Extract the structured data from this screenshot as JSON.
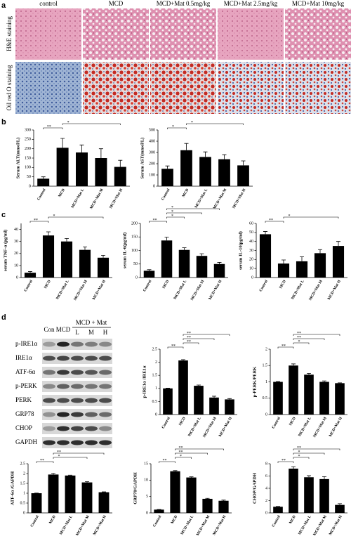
{
  "panel_a": {
    "label": "a",
    "columns": [
      "control",
      "MCD",
      "MCD+Mat 0.5mg/kg",
      "MCD+Mat 2.5mg/kg",
      "MCD+Mat 10mg/kg"
    ],
    "rows": [
      "H&E staining",
      "Oil red O staining"
    ]
  },
  "panel_b": {
    "label": "b"
  },
  "panel_c": {
    "label": "c"
  },
  "panel_d": {
    "label": "d",
    "lanes": [
      "Con",
      "MCD",
      "L",
      "M",
      "H"
    ],
    "group": "MCD + Mat",
    "rows": [
      "p-IRE1α",
      "IRE1α",
      "ATF-6α",
      "p-PERK",
      "PERK",
      "GRP78",
      "CHOP",
      "GAPDH"
    ]
  },
  "chart_data": [
    {
      "type": "bar",
      "y_label": "Serum ALT(mmol/L)",
      "categories": [
        "Control",
        "MCD",
        "MCD+Mat L",
        "MCD+Mat M",
        "MCD+Mat H"
      ],
      "values": [
        40,
        205,
        180,
        150,
        103
      ],
      "errors": [
        10,
        50,
        40,
        50,
        35
      ],
      "color": "#000000",
      "ylim": [
        0,
        300
      ],
      "yticks": [
        0,
        50,
        100,
        150,
        200,
        250,
        300
      ],
      "annotations": [
        {
          "text": "**",
          "from": "Control",
          "to": "MCD"
        },
        {
          "text": "*",
          "from": "MCD",
          "to": "MCD+Mat H"
        }
      ]
    },
    {
      "type": "bar",
      "y_label": "Serum AST(mmol/L)",
      "categories": [
        "Control",
        "MCD",
        "MCD+Mat L",
        "MCD+Mat M",
        "MCD+Mat H"
      ],
      "values": [
        155,
        320,
        260,
        240,
        185
      ],
      "errors": [
        25,
        60,
        45,
        40,
        40
      ],
      "color": "#000000",
      "ylim": [
        0,
        500
      ],
      "yticks": [
        0,
        100,
        200,
        300,
        400,
        500
      ],
      "annotations": [
        {
          "text": "*",
          "from": "Control",
          "to": "MCD"
        },
        {
          "text": "*",
          "from": "MCD",
          "to": "MCD+Mat H"
        }
      ]
    },
    {
      "type": "bar",
      "y_label": "serum TNF-α (pg/ml)",
      "categories": [
        "Control",
        "MCD",
        "MCD+Mat L",
        "MCD+Mat M",
        "MCD+Mat H"
      ],
      "values": [
        4,
        35,
        30,
        23,
        16.5
      ],
      "errors": [
        1,
        3,
        2.5,
        2.5,
        2
      ],
      "color": "#000000",
      "ylim": [
        0,
        45
      ],
      "yticks": [
        0,
        10,
        20,
        30,
        40
      ],
      "annotations": [
        {
          "text": "**",
          "from": "Control",
          "to": "MCD"
        },
        {
          "text": "*",
          "from": "MCD",
          "to": "MCD+Mat H"
        }
      ]
    },
    {
      "type": "bar",
      "y_label": "serum IL-6(pg/ml)",
      "categories": [
        "Control",
        "MCD",
        "MCD+Mat L",
        "MCD+Mat M",
        "MCD+Mat H"
      ],
      "values": [
        25,
        137,
        102,
        80,
        50
      ],
      "errors": [
        4,
        12,
        8,
        8,
        6
      ],
      "color": "#000000",
      "ylim": [
        0,
        200
      ],
      "yticks": [
        0,
        50,
        100,
        150,
        200
      ],
      "annotations": [
        {
          "text": "**",
          "from": "Control",
          "to": "MCD"
        },
        {
          "text": "*",
          "from": "MCD",
          "to": "MCD+Mat L"
        },
        {
          "text": "*",
          "from": "MCD",
          "to": "MCD+Mat M"
        },
        {
          "text": "*",
          "from": "MCD",
          "to": "MCD+Mat H"
        }
      ]
    },
    {
      "type": "bar",
      "y_label": "serum IL-10(pg/ml)",
      "categories": [
        "Control",
        "MCD",
        "MCD+Mat L",
        "MCD+Mat M",
        "MCD+Mat H"
      ],
      "values": [
        48,
        15.5,
        18,
        27,
        35
      ],
      "errors": [
        3,
        4,
        5,
        4,
        5
      ],
      "color": "#000000",
      "ylim": [
        0,
        60
      ],
      "yticks": [
        0,
        10,
        20,
        30,
        40,
        50,
        60
      ],
      "annotations": [
        {
          "text": "**",
          "from": "Control",
          "to": "MCD"
        },
        {
          "text": "*",
          "from": "MCD",
          "to": "MCD+Mat H"
        }
      ]
    },
    {
      "type": "bar",
      "y_label": "p-IRE1α /IRE1α",
      "categories": [
        "Control",
        "MCD",
        "MCD+Mat L",
        "MCD+Mat M",
        "MCD+Mat H"
      ],
      "values": [
        1,
        2.07,
        1.1,
        0.65,
        0.58
      ],
      "errors": [
        0.01,
        0.03,
        0.03,
        0.05,
        0.03
      ],
      "color": "#000000",
      "ylim": [
        0,
        2.5
      ],
      "yticks": [
        0,
        0.5,
        1,
        1.5,
        2,
        2.5
      ],
      "annotations": [
        {
          "text": "**",
          "from": "Control",
          "to": "MCD"
        },
        {
          "text": "**",
          "from": "MCD",
          "to": "MCD+Mat L"
        },
        {
          "text": "**",
          "from": "MCD",
          "to": "MCD+Mat M"
        },
        {
          "text": "**",
          "from": "MCD",
          "to": "MCD+Mat H"
        }
      ]
    },
    {
      "type": "bar",
      "y_label": "p-PERK/PERK",
      "categories": [
        "Control",
        "MCD",
        "MCD+Mat L",
        "MCD+Mat M",
        "MCD+Mat H"
      ],
      "values": [
        1,
        1.5,
        1.22,
        1,
        0.96
      ],
      "errors": [
        0.01,
        0.05,
        0.04,
        0.03,
        0.01
      ],
      "color": "#000000",
      "ylim": [
        0,
        2
      ],
      "yticks": [
        0,
        0.5,
        1,
        1.5,
        2
      ],
      "annotations": [
        {
          "text": "**",
          "from": "Control",
          "to": "MCD"
        },
        {
          "text": "*",
          "from": "MCD",
          "to": "MCD+Mat L"
        },
        {
          "text": "**",
          "from": "MCD",
          "to": "MCD+Mat M"
        },
        {
          "text": "**",
          "from": "MCD",
          "to": "MCD+Mat H"
        }
      ]
    },
    {
      "type": "bar",
      "y_label": "ATF-6α /GAPDH",
      "categories": [
        "Control",
        "MCD",
        "MCD+Mat L",
        "MCD+Mat M",
        "MCD+Mat H"
      ],
      "values": [
        1,
        1.95,
        1.9,
        1.55,
        1.05
      ],
      "errors": [
        0.01,
        0.06,
        0.02,
        0.04,
        0.02
      ],
      "color": "#000000",
      "ylim": [
        0,
        2.5
      ],
      "yticks": [
        0,
        0.5,
        1,
        1.5,
        2,
        2.5
      ],
      "annotations": [
        {
          "text": "**",
          "from": "Control",
          "to": "MCD"
        },
        {
          "text": "*",
          "from": "MCD",
          "to": "MCD+Mat M"
        },
        {
          "text": "**",
          "from": "MCD",
          "to": "MCD+Mat H"
        }
      ]
    },
    {
      "type": "bar",
      "y_label": "GRP78/GAPDH",
      "categories": [
        "Control",
        "MCD",
        "MCD+Mat L",
        "MCD+Mat M",
        "MCD+Mat H"
      ],
      "values": [
        1,
        12.7,
        10.8,
        4.3,
        3.7
      ],
      "errors": [
        0.05,
        0.2,
        0.2,
        0.15,
        0.2
      ],
      "color": "#000000",
      "ylim": [
        0,
        15
      ],
      "yticks": [
        0,
        5,
        10,
        15
      ],
      "annotations": [
        {
          "text": "**",
          "from": "Control",
          "to": "MCD"
        },
        {
          "text": "*",
          "from": "MCD",
          "to": "MCD+Mat L"
        },
        {
          "text": "**",
          "from": "MCD",
          "to": "MCD+Mat M"
        },
        {
          "text": "**",
          "from": "MCD",
          "to": "MCD+Mat H"
        }
      ]
    },
    {
      "type": "bar",
      "y_label": "CHOP/GAPDH",
      "categories": [
        "Control",
        "MCD",
        "MCD+Mat L",
        "MCD+Mat M",
        "MCD+Mat H"
      ],
      "values": [
        1,
        7.2,
        5.8,
        5.5,
        1.3
      ],
      "errors": [
        0.05,
        0.3,
        0.25,
        0.4,
        0.2
      ],
      "color": "#000000",
      "ylim": [
        0,
        8
      ],
      "yticks": [
        0,
        2,
        4,
        6,
        8
      ],
      "annotations": [
        {
          "text": "**",
          "from": "Control",
          "to": "MCD"
        },
        {
          "text": "*",
          "from": "MCD",
          "to": "MCD+Mat L"
        },
        {
          "text": "*",
          "from": "MCD",
          "to": "MCD+Mat M"
        },
        {
          "text": "**",
          "from": "MCD",
          "to": "MCD+Mat H"
        }
      ]
    }
  ]
}
